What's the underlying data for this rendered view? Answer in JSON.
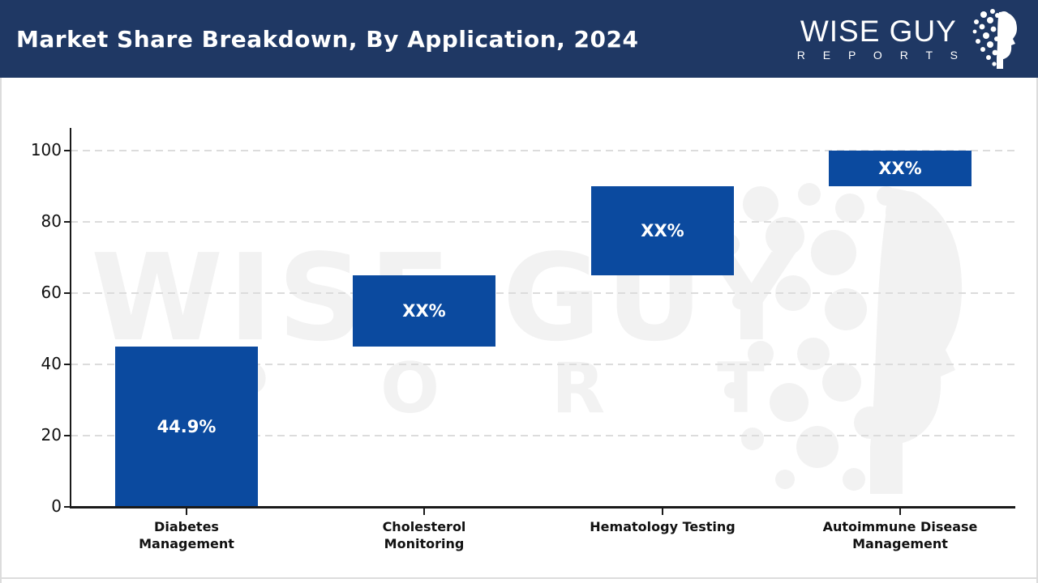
{
  "header": {
    "title": "Market Share Breakdown, By Application, 2024",
    "logo": {
      "name": "Wise Guy Reports",
      "line1": "WISE GUY",
      "line2": "R E P O R T S"
    }
  },
  "colors": {
    "header_background": "#1f3864",
    "bar_blue": "#0b4a9f",
    "gridline_gray": "#dcdcdc",
    "watermark_gray": "#f2f2f2"
  },
  "chart_data": {
    "type": "bar",
    "subtype": "waterfall",
    "title": "Market Share Breakdown, By Application, 2024",
    "categories": [
      "Diabetes Management",
      "Cholesterol Monitoring",
      "Hematology Testing",
      "Autoimmune Disease Management"
    ],
    "categories_lines": [
      [
        "Diabetes",
        "Management"
      ],
      [
        "Cholesterol",
        "Monitoring"
      ],
      [
        "Hematology Testing"
      ],
      [
        "Autoimmune Disease",
        "Management"
      ]
    ],
    "segments": [
      {
        "category": "Diabetes Management",
        "start": 0,
        "end": 44.9,
        "label": "44.9%"
      },
      {
        "category": "Cholesterol Monitoring",
        "start": 44.9,
        "end": 65,
        "label": "XX%"
      },
      {
        "category": "Hematology Testing",
        "start": 65,
        "end": 90,
        "label": "XX%"
      },
      {
        "category": "Autoimmune Disease Management",
        "start": 90,
        "end": 100,
        "label": "XX%"
      }
    ],
    "yticks": [
      0,
      20,
      40,
      60,
      80,
      100
    ],
    "ylim": [
      0,
      106
    ],
    "xlabel": "",
    "ylabel": "",
    "grid": "horizontal-dashed",
    "legend": "none",
    "bar_color": "#0b4a9f",
    "bar_label_color": "#ffffff",
    "watermark": {
      "line1": "WISE GUY",
      "line2": "P O R T S"
    }
  }
}
